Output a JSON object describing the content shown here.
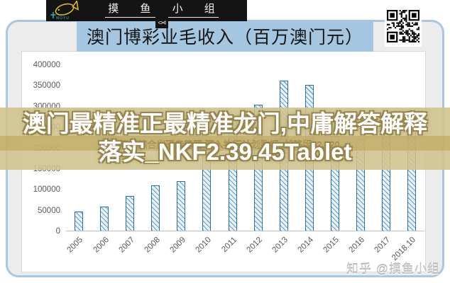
{
  "logo": {
    "brand": "摸 鱼 小 组",
    "sub": "MOYU"
  },
  "header": {
    "title": "澳门博彩业毛收入（百万澳门元）"
  },
  "overlay": {
    "line1": "澳门最精准正最精准龙门,中庸解答解释",
    "line2": "落实_NKF2.39.45Tablet",
    "faint": "新澳门综合出码走势图,深入执行计划数据_战略版52.220"
  },
  "watermark": "知乎 @摸鱼小组",
  "icons": {
    "qr": "qr-code",
    "fish": "moyu-fish-logo"
  },
  "colors": {
    "card_border": "#a9c7e2",
    "card_bg": "#ececec",
    "title_highlight": "#a5c6e1",
    "bar_outline": "#2f6f9f",
    "bar_hatch": "#69a1c8",
    "bar_fill": "#e9f2f8",
    "overlay_band": "#d0c38c",
    "overlay_text": "#ffffff",
    "axis_text": "#595959"
  },
  "chart_data": {
    "type": "bar",
    "title": "澳门博彩业毛收入（百万澳门元）",
    "xlabel": "",
    "ylabel": "",
    "categories": [
      "2005",
      "2006",
      "2007",
      "2008",
      "2009",
      "2010",
      "2011",
      "2012",
      "2013",
      "2014",
      "2015",
      "2016",
      "2017",
      "2018.10"
    ],
    "values": [
      47000,
      57500,
      84000,
      110000,
      120500,
      189500,
      269000,
      305000,
      362000,
      353000,
      229000,
      220000,
      266000,
      250000
    ],
    "ylim": [
      0,
      400000
    ],
    "y_ticks": [
      0,
      50000,
      100000,
      150000,
      200000,
      250000,
      300000,
      350000,
      400000
    ],
    "grid": false,
    "legend": "none",
    "bar_style": "diagonal-hatch"
  }
}
